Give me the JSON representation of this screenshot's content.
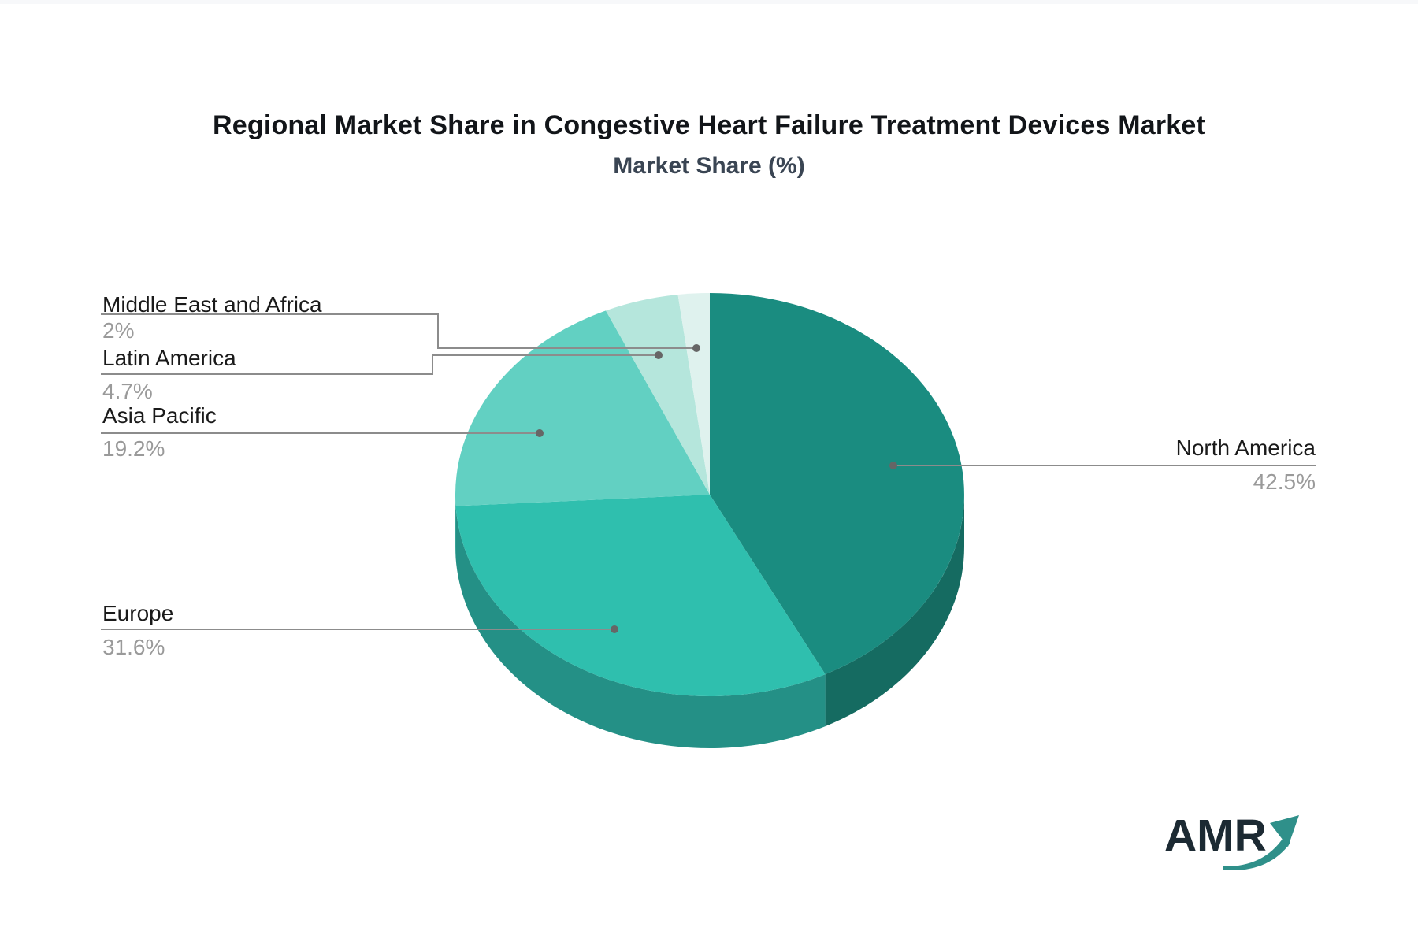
{
  "page": {
    "background": "#ffffff",
    "top_strip_color": "#f7f8fa"
  },
  "chart_data": {
    "type": "pie",
    "style": "3d",
    "title": "Regional Market Share in Congestive Heart Failure Treatment Devices Market",
    "subtitle": "Market Share (%)",
    "unit": "%",
    "direction": "clockwise",
    "start_angle_deg_from_12": 0,
    "labels": [
      "North America",
      "Europe",
      "Asia Pacific",
      "Latin America",
      "Middle East and Africa"
    ],
    "values": [
      42.5,
      31.6,
      19.2,
      4.7,
      2
    ],
    "value_labels": [
      "42.5%",
      "31.6%",
      "19.2%",
      "4.7%",
      "2%"
    ],
    "colors": [
      "#1a8c80",
      "#2fbfae",
      "#62d0c2",
      "#b5e6dc",
      "#dff2ee"
    ],
    "side_colors": [
      "#156b61",
      "#249086",
      "#4ab5a7",
      "#9cd6ca",
      "#c9e8e1"
    ],
    "label_color": "#1a1a1a",
    "value_label_color": "#9a9a9a",
    "leader_line_color": "#8c8c8c",
    "leader_dot_color": "#666666",
    "title_color": "#121519",
    "subtitle_color": "#3a4553",
    "legend": "none",
    "background": "#ffffff"
  },
  "logo": {
    "text": "AMR",
    "text_color": "#1c2a33",
    "arrow_color": "#2f908a"
  }
}
